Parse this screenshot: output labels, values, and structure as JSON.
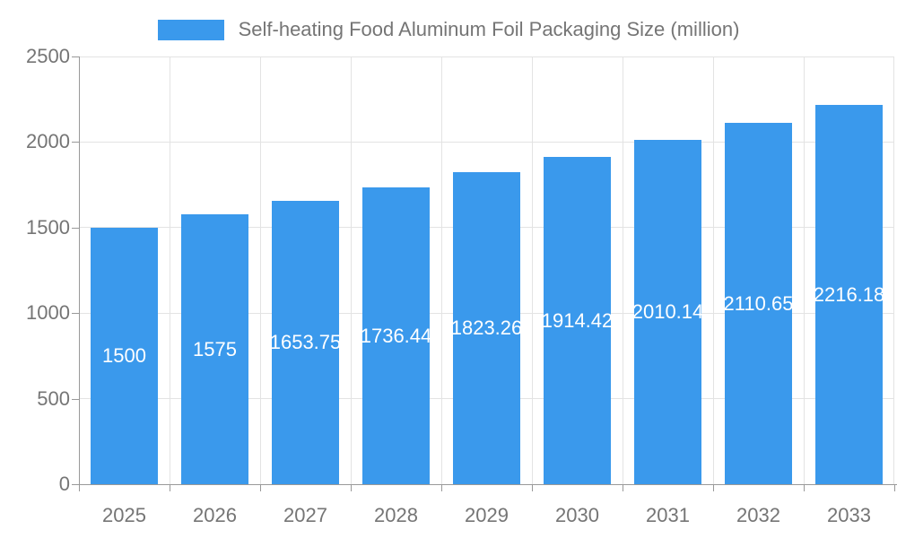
{
  "chart_data": {
    "type": "bar",
    "title": "Self-heating Food Aluminum Foil Packaging Size (million)",
    "legend": [
      "Self-heating Food Aluminum Foil Packaging Size (million)"
    ],
    "legend_position": "top",
    "categories": [
      "2025",
      "2026",
      "2027",
      "2028",
      "2029",
      "2030",
      "2031",
      "2032",
      "2033"
    ],
    "series": [
      {
        "name": "Self-heating Food Aluminum Foil Packaging Size (million)",
        "values": [
          1500,
          1575,
          1653.75,
          1736.44,
          1823.26,
          1914.42,
          2010.14,
          2110.65,
          2216.18
        ],
        "value_labels": [
          "1500",
          "1575",
          "1653.75",
          "1736.44",
          "1823.26",
          "1914.42",
          "2010.14",
          "2110.65",
          "2216.18"
        ]
      }
    ],
    "xlabel": "",
    "ylabel": "",
    "ylim": [
      0,
      2500
    ],
    "y_ticks": [
      0,
      500,
      1000,
      1500,
      2000,
      2500
    ],
    "grid": true,
    "value_labels_position": "inside-center",
    "colors": {
      "bar": "#3A99EC",
      "gridline": "#E3E3E3",
      "axis_line": "#999999",
      "axis_text": "#757575",
      "value_label": "#FFFFFF",
      "background": "#FFFFFF"
    }
  }
}
